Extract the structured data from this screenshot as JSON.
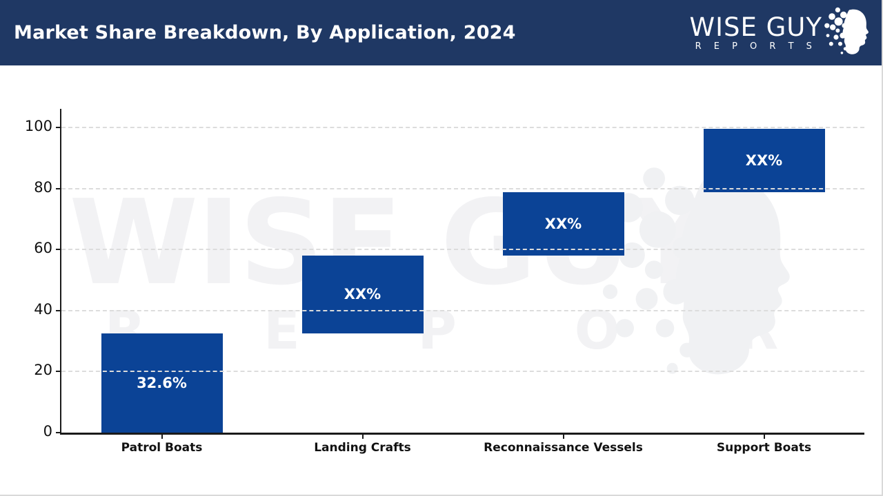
{
  "page": {
    "background": "#ffffff",
    "edge_border_color": "#d9d9d9"
  },
  "header": {
    "background": "#1f3864",
    "title": "Market Share Breakdown, By Application, 2024",
    "logo": {
      "line1": "WISE GUY",
      "line2": "R E P O R T S",
      "face_icon": "dotted-face-profile"
    }
  },
  "watermark": {
    "line1": "WISE GUY",
    "line2": "R E P O R T S",
    "color": "#f2f2f4"
  },
  "chart_data": {
    "type": "bar",
    "variant": "floating-segment-waterfall",
    "title": "Market Share Breakdown, By Application, 2024",
    "categories": [
      "Patrol Boats",
      "Landing Crafts",
      "Reconnaissance Vessels",
      "Support Boats"
    ],
    "series": [
      {
        "name": "Market share (%)",
        "segments": [
          {
            "category": "Patrol Boats",
            "start": 0,
            "end": 32.6,
            "label": "32.6%"
          },
          {
            "category": "Landing Crafts",
            "start": 32.6,
            "end": 58.0,
            "label": "XX%"
          },
          {
            "category": "Reconnaissance Vessels",
            "start": 58.0,
            "end": 78.8,
            "label": "XX%"
          },
          {
            "category": "Support Boats",
            "start": 78.8,
            "end": 99.6,
            "label": "XX%"
          }
        ]
      }
    ],
    "xlabel": "",
    "ylabel": "",
    "y_ticks": [
      0,
      20,
      40,
      60,
      80,
      100
    ],
    "ylim": [
      0,
      105
    ],
    "grid": "horizontal-dashed",
    "legend": "none",
    "colors": {
      "bar": "#0b4396",
      "bar_label": "#ffffff",
      "axis": "#1a1a1a",
      "gridline": "#dcdcdc",
      "tick_text": "#111111",
      "category_text": "#111111"
    }
  }
}
